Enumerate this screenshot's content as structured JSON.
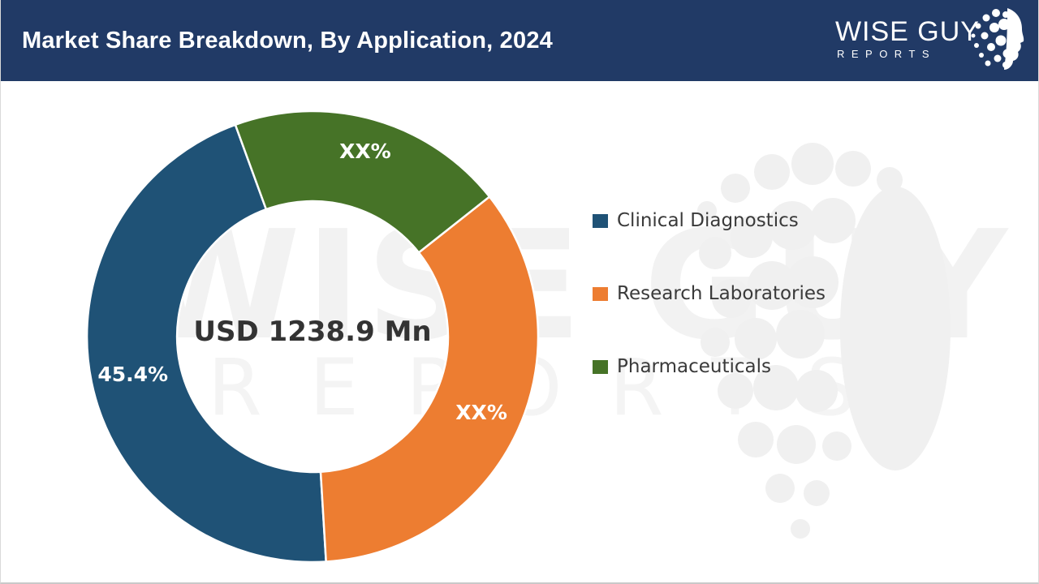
{
  "header": {
    "title": "Market Share Breakdown, By Application, 2024",
    "bg_color": "#213A66",
    "logo": {
      "wordmark": "WISE GUY",
      "subtext": "REPORTS"
    }
  },
  "watermark": {
    "wordmark": "WISE GUY",
    "subtext": "R E P O R T S"
  },
  "chart_data": {
    "type": "pie",
    "subtype": "donut",
    "title": "Market Share Breakdown, By Application, 2024",
    "center_label": "USD 1238.9 Mn",
    "categories": [
      "Clinical Diagnostics",
      "Research Laboratories",
      "Pharmaceuticals"
    ],
    "values_pct": [
      45.4,
      34.7,
      19.9
    ],
    "slice_labels": [
      "45.4%",
      "XX%",
      "XX%"
    ],
    "colors": [
      "#1F5276",
      "#ED7D31",
      "#467327"
    ],
    "start_angle_deg": 110,
    "direction": "counterclockwise",
    "inner_radius_ratio": 0.6,
    "legend_position": "right",
    "label_text_color": "#FFFFFF",
    "center_text_color": "#333333"
  },
  "colors": {
    "header_bg": "#213A66",
    "accent_blue": "#1F5276",
    "accent_orange": "#ED7D31",
    "accent_green": "#467327",
    "legend_text": "#3A3A3A",
    "watermark": "#F2F2F2"
  }
}
